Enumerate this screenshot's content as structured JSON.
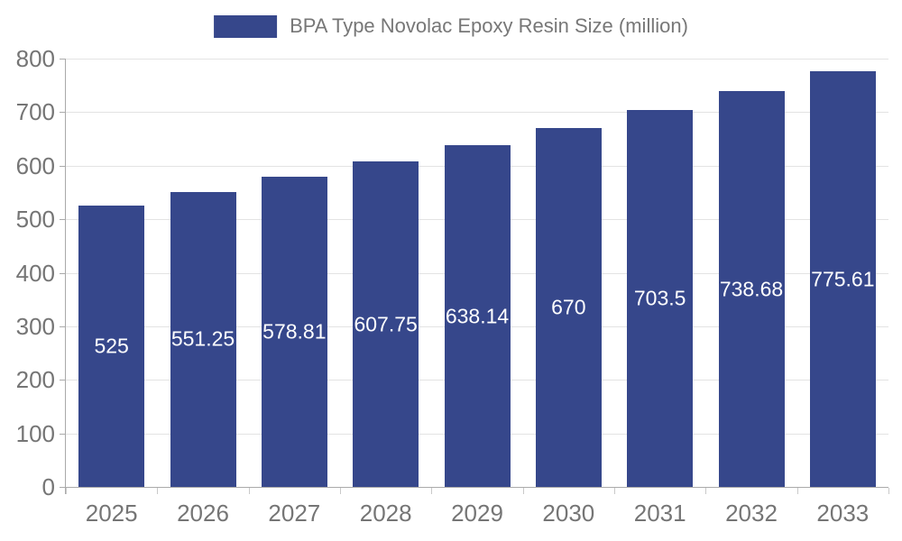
{
  "legend": {
    "label": "BPA Type Novolac Epoxy Resin Size (million)"
  },
  "chart_data": {
    "type": "bar",
    "title": "BPA Type Novolac Epoxy Resin Size (million)",
    "categories": [
      "2025",
      "2026",
      "2027",
      "2028",
      "2029",
      "2030",
      "2031",
      "2032",
      "2033"
    ],
    "values": [
      525,
      551.25,
      578.81,
      607.75,
      638.14,
      670,
      703.5,
      738.68,
      775.61
    ],
    "value_labels": [
      "525",
      "551.25",
      "578.81",
      "607.75",
      "638.14",
      "670",
      "703.5",
      "738.68",
      "775.61"
    ],
    "xlabel": "",
    "ylabel": "",
    "ylim": [
      0,
      800
    ],
    "yticks": [
      0,
      100,
      200,
      300,
      400,
      500,
      600,
      700,
      800
    ],
    "legend_position": "top-center",
    "grid": true,
    "colors": {
      "bar": "#36478B",
      "bar_label": "#ffffff",
      "axis_text": "#757575",
      "legend_text": "#777777",
      "grid_line": "#e3e3e3",
      "axis_line": "#aaaaaa",
      "tick_line": "#c9c9c9",
      "background": "#ffffff"
    }
  }
}
